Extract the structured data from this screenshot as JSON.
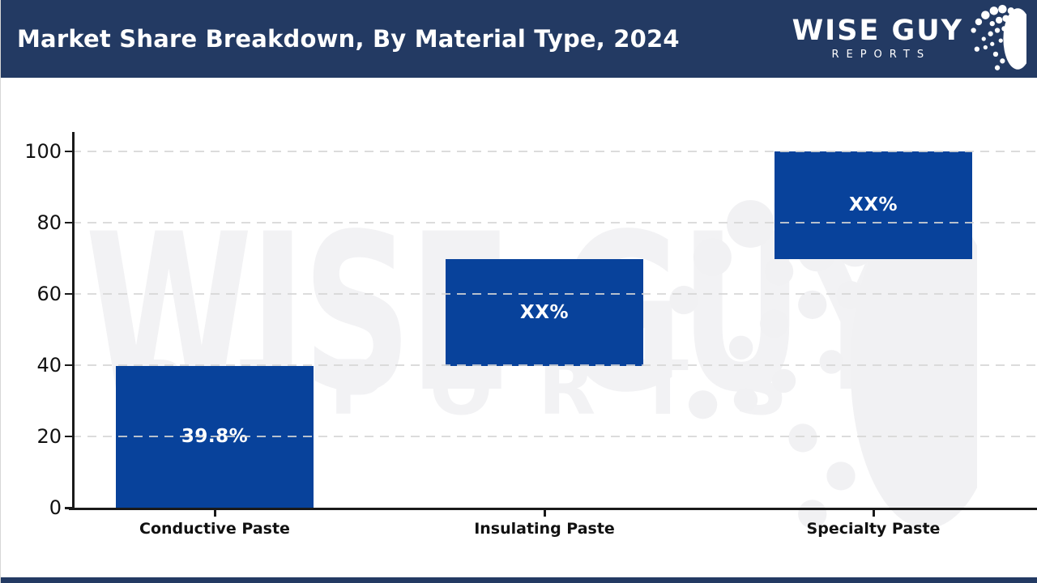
{
  "header": {
    "title": "Market Share Breakdown, By Material Type, 2024",
    "logo": {
      "line1": "WISE GUY",
      "line2": "REPORTS"
    }
  },
  "watermark": {
    "line1": "WISE GUY",
    "line2": "REPORTS"
  },
  "chart_data": {
    "type": "bar",
    "subtype": "floating-segment-waterfall",
    "title": "Market Share Breakdown, By Material Type, 2024",
    "xlabel": "",
    "ylabel": "",
    "categories": [
      "Conductive Paste",
      "Insulating Paste",
      "Specialty Paste"
    ],
    "bars": [
      {
        "category": "Conductive Paste",
        "base": 0,
        "top": 39.8,
        "label": "39.8%"
      },
      {
        "category": "Insulating Paste",
        "base": 39.8,
        "top": 69.8,
        "label": "XX%"
      },
      {
        "category": "Specialty Paste",
        "base": 69.8,
        "top": 100,
        "label": "XX%"
      }
    ],
    "yticks": [
      0,
      20,
      40,
      60,
      80,
      100
    ],
    "ylim": [
      0,
      105
    ],
    "grid": "dashed-horizontal",
    "legend": "none"
  },
  "colors": {
    "header_bg": "#233a63",
    "footer_bg": "#233a63",
    "title": "#ffffff",
    "bar": "#08429b",
    "bar_label": "#ffffff",
    "axis": "#1a1a1a",
    "gridline": "#d6d6d6",
    "watermark": "#f2f2f4"
  }
}
